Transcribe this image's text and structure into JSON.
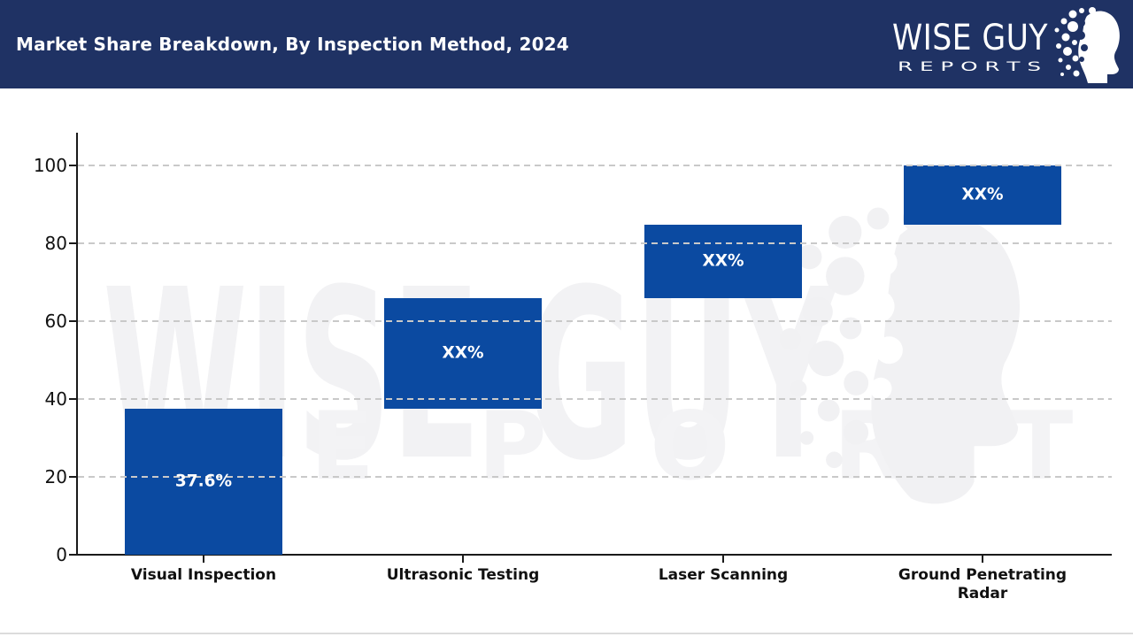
{
  "header": {
    "title": "Market Share Breakdown, By Inspection Method, 2024",
    "bg_color": "#1f3264",
    "logo": {
      "line1": "WISE GUY",
      "line2": "R E P O R T S",
      "head_icon": "dotted-head-profile"
    }
  },
  "watermark": {
    "line1": "WISE GUY",
    "line2": "R E P O R T S",
    "head_icon": "dotted-head-profile",
    "color": "#f2f2f4"
  },
  "chart_data": {
    "type": "bar",
    "subtype": "waterfall",
    "title": "Market Share Breakdown, By Inspection Method, 2024",
    "categories": [
      "Visual Inspection",
      "Ultrasonic Testing",
      "Laser Scanning",
      "Ground Penetrating Radar"
    ],
    "segments": [
      {
        "category": "Visual Inspection",
        "start": 0,
        "end": 37.6,
        "label": "37.6%"
      },
      {
        "category": "Ultrasonic Testing",
        "start": 37.6,
        "end": 66.0,
        "label": "XX%"
      },
      {
        "category": "Laser Scanning",
        "start": 66.0,
        "end": 84.8,
        "label": "XX%"
      },
      {
        "category": "Ground Penetrating Radar",
        "start": 84.8,
        "end": 100,
        "label": "XX%"
      }
    ],
    "y_ticks": [
      0,
      20,
      40,
      60,
      80,
      100
    ],
    "ylim": [
      0,
      105
    ],
    "xlabel": "",
    "ylabel": "",
    "legend": "none",
    "grid": true,
    "grid_style": "dashed",
    "bar_color": "#0b4aa1",
    "grid_color": "#c9c9c9",
    "axis_color": "#1a1a1a",
    "bar_label_color": "#ffffff"
  }
}
